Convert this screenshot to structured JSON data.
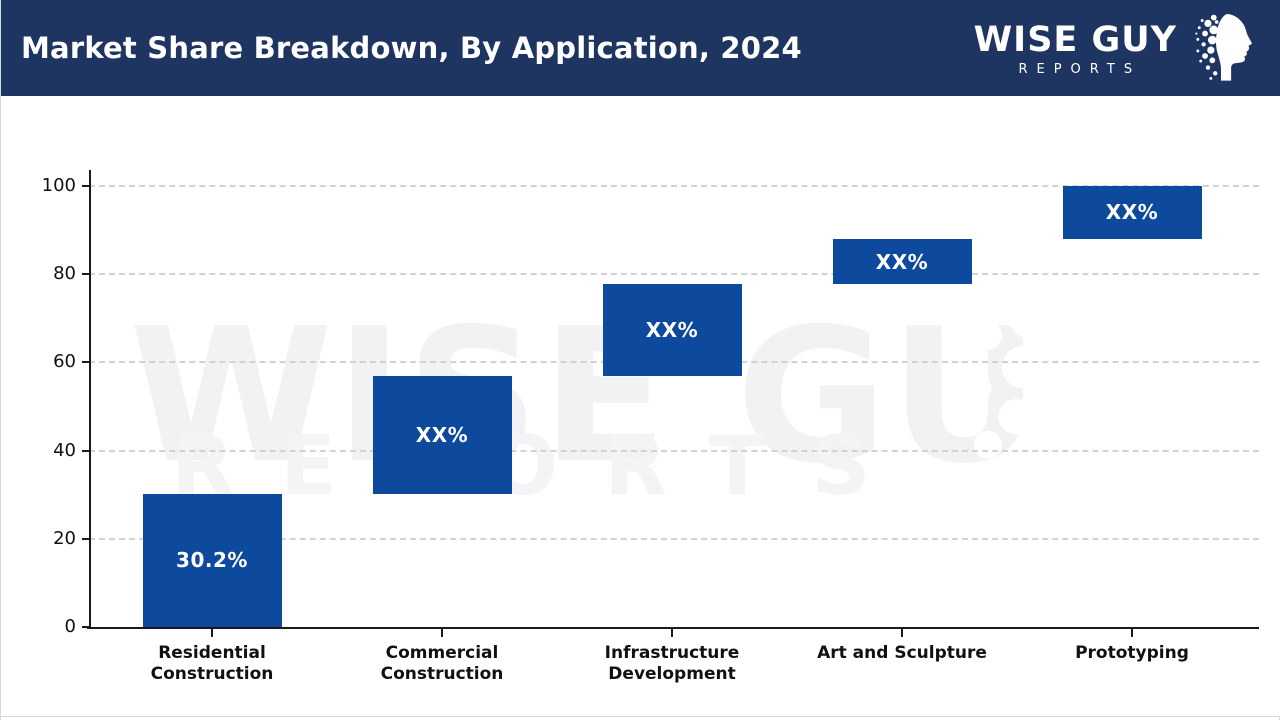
{
  "header": {
    "title": "Market Share Breakdown, By Application, 2024",
    "bg_color": "#1e3461",
    "logo": {
      "line1": "WISE GUY",
      "line2": "REPORTS"
    }
  },
  "watermark": {
    "line1": "WISE GUY",
    "line2": "REPORTS"
  },
  "chart_data": {
    "type": "bar",
    "variant": "waterfall",
    "title": "Market Share Breakdown, By Application, 2024",
    "categories": [
      "Residential\nConstruction",
      "Commercial\nConstruction",
      "Infrastructure\nDevelopment",
      "Art and Sculpture",
      "Prototyping"
    ],
    "segments": [
      {
        "category": "Residential Construction",
        "start": 0,
        "end": 30.2,
        "label": "30.2%"
      },
      {
        "category": "Commercial Construction",
        "start": 30.2,
        "end": 57,
        "label": "XX%"
      },
      {
        "category": "Infrastructure Development",
        "start": 57,
        "end": 77.7,
        "label": "XX%"
      },
      {
        "category": "Art and Sculpture",
        "start": 77.7,
        "end": 88,
        "label": "XX%"
      },
      {
        "category": "Prototyping",
        "start": 88,
        "end": 100,
        "label": "XX%"
      }
    ],
    "ylim": [
      0,
      105
    ],
    "yticks": [
      0,
      20,
      40,
      60,
      80,
      100
    ],
    "xlabel": "",
    "ylabel": "",
    "legend": "none",
    "grid": {
      "horizontal": true,
      "style": "dashed"
    },
    "colors": {
      "bar": "#0d4a9e",
      "bar_label": "#ffffff",
      "axis": "#1a1a1a",
      "gridline": "#d2d2d2",
      "tick_label": "#111111"
    }
  }
}
